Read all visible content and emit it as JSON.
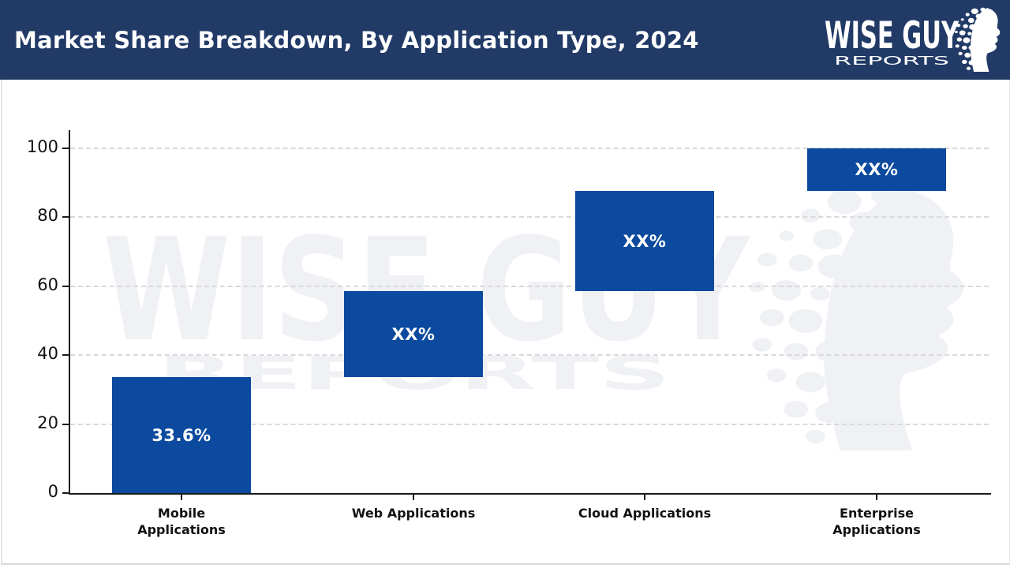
{
  "header": {
    "title": "Market Share Breakdown, By Application Type, 2024",
    "brand": {
      "name": "WISE GUY",
      "subtitle": "REPORTS"
    }
  },
  "watermark": {
    "text": "WISE GUY",
    "subtext": "REPORTS"
  },
  "colors": {
    "header_bg": "#213a66",
    "bar": "#0b4a9e",
    "grid": "#d9d9d9",
    "watermark": "#eff1f4",
    "bar_label_text": "#ffffff"
  },
  "chart_data": {
    "type": "bar",
    "subtype": "waterfall",
    "title": "Market Share Breakdown, By Application Type, 2024",
    "categories": [
      "Mobile\nApplications",
      "Web Applications",
      "Cloud Applications",
      "Enterprise\nApplications"
    ],
    "bars": [
      {
        "category": "Mobile Applications",
        "start": 0,
        "end": 33.6,
        "label": "33.6%"
      },
      {
        "category": "Web Applications",
        "start": 33.6,
        "end": 58.6,
        "label": "XX%"
      },
      {
        "category": "Cloud Applications",
        "start": 58.6,
        "end": 87.6,
        "label": "XX%"
      },
      {
        "category": "Enterprise Applications",
        "start": 87.6,
        "end": 100,
        "label": "XX%"
      }
    ],
    "xlabel": "",
    "ylabel": "",
    "ylim": [
      0,
      100
    ],
    "yticks": [
      0,
      20,
      40,
      60,
      80,
      100
    ],
    "grid": "horizontal-dashed",
    "legend": "none",
    "bar_color": "#0b4a9e"
  }
}
